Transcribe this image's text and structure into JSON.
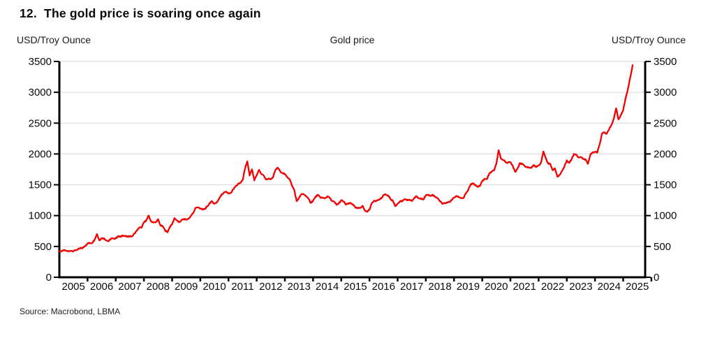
{
  "title": "12.  The gold price is soaring once again",
  "axes": {
    "left_axis_title": "USD/Troy Ounce",
    "center_title": "Gold price",
    "right_axis_title": "USD/Troy Ounce"
  },
  "source": "Source: Macrobond, LBMA",
  "chart_data": {
    "type": "line",
    "title": "Gold price",
    "xlabel": "",
    "ylabel_left": "USD/Troy Ounce",
    "ylabel_right": "USD/Troy Ounce",
    "ylim": [
      0,
      3500
    ],
    "xlim": [
      2005,
      2025.78
    ],
    "y_ticks": [
      0,
      500,
      1000,
      1500,
      2000,
      2500,
      3000,
      3500
    ],
    "x_tick_labels": [
      "2005",
      "2006",
      "2007",
      "2008",
      "2009",
      "2010",
      "2011",
      "2012",
      "2013",
      "2014",
      "2015",
      "2016",
      "2017",
      "2018",
      "2019",
      "2020",
      "2021",
      "2022",
      "2023",
      "2024",
      "2025"
    ],
    "grid": "horizontal-only",
    "legend": "none",
    "line_color": "#f20000",
    "axis_color": "#000000",
    "grid_color": "#d6d6d6",
    "series": [
      {
        "name": "Gold price (USD/Troy Ounce)",
        "x_start_year": 2005,
        "x_interval": "monthly",
        "values": [
          424,
          423,
          434,
          429,
          421,
          430,
          425,
          437,
          456,
          469,
          476,
          510,
          550,
          555,
          557,
          611,
          700,
          600,
          633,
          632,
          598,
          585,
          627,
          629,
          631,
          665,
          655,
          679,
          667,
          655,
          665,
          665,
          713,
          754,
          806,
          803,
          890,
          922,
          1000,
          910,
          889,
          889,
          940,
          839,
          829,
          760,
          730,
          816,
          858,
          960,
          924,
          890,
          928,
          946,
          934,
          949,
          996,
          1043,
          1127,
          1134,
          1118,
          1095,
          1113,
          1148,
          1205,
          1232,
          1193,
          1216,
          1271,
          1342,
          1370,
          1390,
          1356,
          1372,
          1424,
          1473,
          1510,
          1528,
          1572,
          1755,
          1880,
          1650,
          1750,
          1570,
          1654,
          1742,
          1674,
          1650,
          1585,
          1598,
          1594,
          1626,
          1744,
          1775,
          1721,
          1688,
          1671,
          1628,
          1593,
          1487,
          1414,
          1235,
          1285,
          1347,
          1348,
          1316,
          1276,
          1205,
          1244,
          1300,
          1336,
          1298,
          1288,
          1279,
          1310,
          1295,
          1238,
          1222,
          1176,
          1200,
          1250,
          1227,
          1178,
          1197,
          1199,
          1181,
          1130,
          1117,
          1125,
          1159,
          1086,
          1060,
          1097,
          1200,
          1245,
          1242,
          1260,
          1276,
          1336,
          1340,
          1326,
          1266,
          1238,
          1152,
          1192,
          1234,
          1231,
          1266,
          1246,
          1260,
          1236,
          1283,
          1314,
          1279,
          1281,
          1264,
          1331,
          1330,
          1324,
          1334,
          1303,
          1281,
          1238,
          1190,
          1198,
          1215,
          1220,
          1250,
          1291,
          1320,
          1300,
          1285,
          1283,
          1359,
          1412,
          1500,
          1525,
          1494,
          1471,
          1478,
          1560,
          1597,
          1591,
          1683,
          1715,
          1732,
          1842,
          2060,
          1921,
          1900,
          1866,
          1858,
          1867,
          1808,
          1710,
          1761,
          1852,
          1834,
          1807,
          1784,
          1776,
          1776,
          1820,
          1786,
          1816,
          1856,
          2040,
          1936,
          1850,
          1836,
          1736,
          1764,
          1630,
          1664,
          1725,
          1797,
          1897,
          1855,
          1912,
          2000,
          1991,
          1942,
          1950,
          1917,
          1915,
          1840,
          1984,
          2026,
          2034,
          2023,
          2160,
          2330,
          2350,
          2326,
          2398,
          2470,
          2570,
          2740,
          2560,
          2630,
          2710,
          2900,
          3050,
          3240,
          3440
        ]
      }
    ]
  }
}
